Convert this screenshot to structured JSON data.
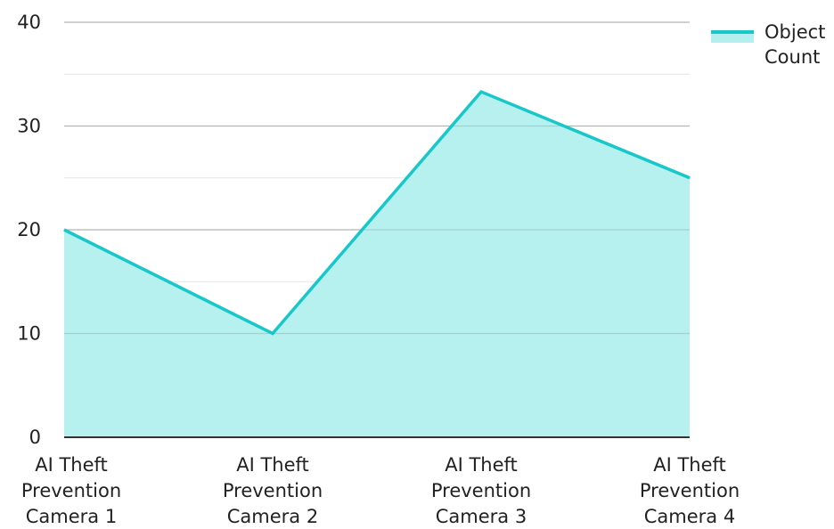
{
  "chart_data": {
    "type": "area",
    "categories": [
      "AI Theft Prevention Camera 1",
      "AI Theft Prevention Camera 2",
      "AI Theft Prevention Camera 3",
      "AI Theft Prevention Camera 4"
    ],
    "category_lines": [
      [
        "AI Theft",
        "Prevention",
        "Camera 1"
      ],
      [
        "AI Theft",
        "Prevention",
        "Camera 2"
      ],
      [
        "AI Theft",
        "Prevention",
        "Camera 3"
      ],
      [
        "AI Theft",
        "Prevention",
        "Camera 4"
      ]
    ],
    "series": [
      {
        "name": "Object Count",
        "values": [
          20,
          10,
          33.3,
          25
        ]
      }
    ],
    "legend_lines": [
      "Object",
      "Count"
    ],
    "ylim": [
      0,
      40
    ],
    "yticks": [
      0,
      10,
      20,
      30,
      40
    ],
    "grid": true,
    "legend_position": "top-right",
    "colors": {
      "line": "#17c7c9",
      "fill": "#b2efee",
      "grid": "#cfcfcf",
      "axis": "#333333"
    }
  }
}
